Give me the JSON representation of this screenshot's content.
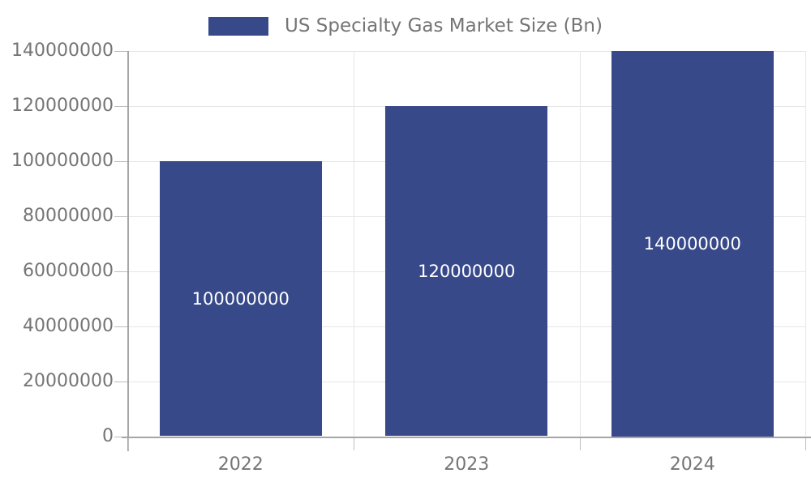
{
  "legend": {
    "label": "US Specialty Gas Market Size (Bn)",
    "position": "top"
  },
  "colors": {
    "bar": "#38498A",
    "data_label": "#ffffff",
    "grid": "#e6e6e6",
    "axis": "#a6a6a6",
    "tick": "#bdbdbd",
    "tick_text": "#757575",
    "background": "#ffffff"
  },
  "chart_data": {
    "type": "bar",
    "title": "US Specialty Gas Market Size (Bn)",
    "categories": [
      "2022",
      "2023",
      "2024"
    ],
    "values": [
      100000000,
      120000000,
      140000000
    ],
    "data_labels": [
      "100000000",
      "120000000",
      "140000000"
    ],
    "xlabel": "",
    "ylabel": "",
    "ylim": [
      0,
      140000000
    ],
    "yticks": [
      0,
      20000000,
      40000000,
      60000000,
      80000000,
      100000000,
      120000000,
      140000000
    ],
    "grid": "on",
    "legend_position": "top",
    "data_label_position": "inside-center"
  }
}
